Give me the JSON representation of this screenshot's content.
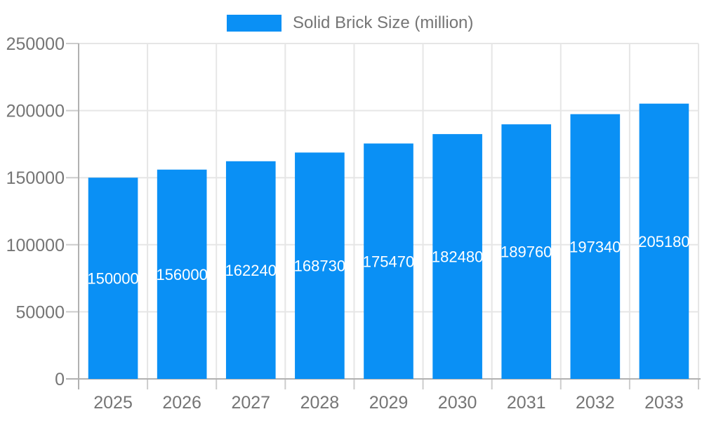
{
  "legend": {
    "label": "Solid Brick Size (million)"
  },
  "chart_data": {
    "type": "bar",
    "title": "",
    "series_label": "Solid Brick Size (million)",
    "categories": [
      "2025",
      "2026",
      "2027",
      "2028",
      "2029",
      "2030",
      "2031",
      "2032",
      "2033"
    ],
    "values": [
      150000,
      156000,
      162240,
      168730,
      175470,
      182480,
      189760,
      197340,
      205180
    ],
    "value_labels": [
      "150000",
      "156000",
      "162240",
      "168730",
      "175470",
      "182480",
      "189760",
      "197340",
      "205180"
    ],
    "xlabel": "",
    "ylabel": "",
    "ylim": [
      0,
      250000
    ],
    "y_ticks": [
      0,
      50000,
      100000,
      150000,
      200000,
      250000
    ],
    "y_tick_labels": [
      "0",
      "50000",
      "100000",
      "150000",
      "200000",
      "250000"
    ],
    "grid": true,
    "legend_position": "top",
    "bar_color": "#0a90f5",
    "value_label_color": "#ffffff",
    "axis_text_color": "#757575",
    "grid_color": "#e6e6e6",
    "tick_color": "#cccccc",
    "axis_line_color": "#b1b1b1"
  }
}
